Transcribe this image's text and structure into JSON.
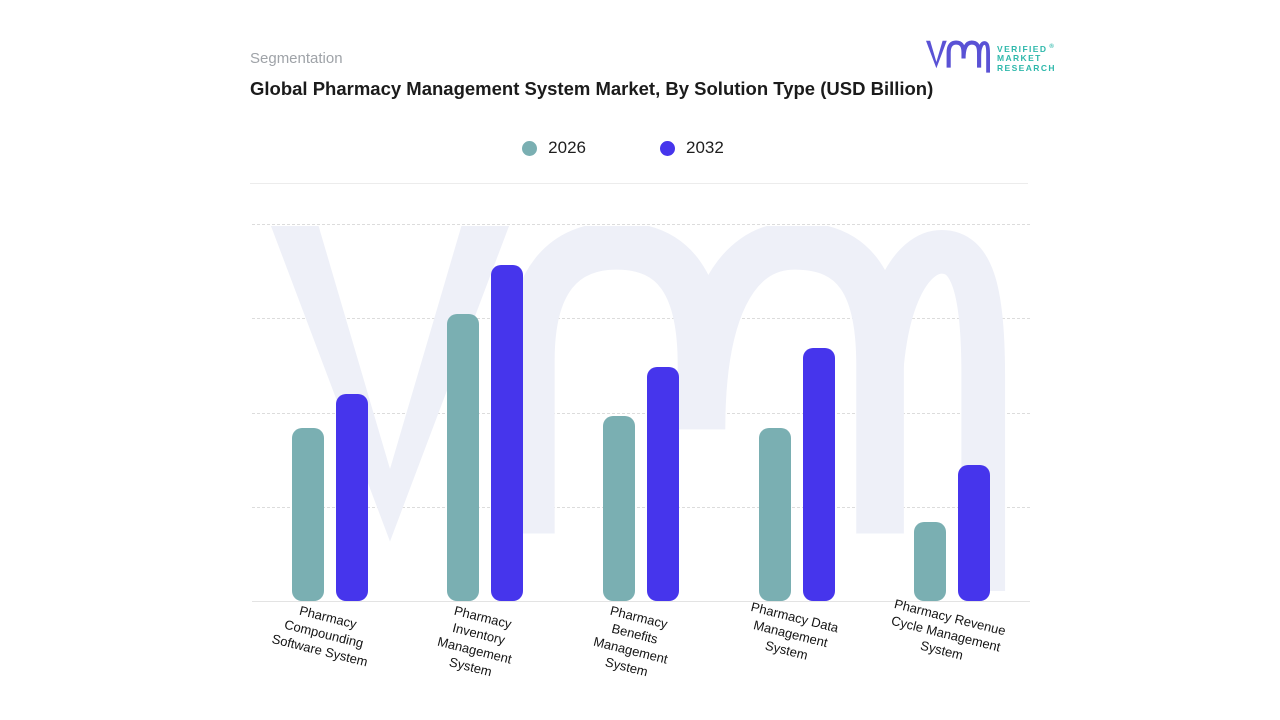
{
  "header": {
    "eyebrow": "Segmentation",
    "title": "Global Pharmacy Management System Market, By Solution Type (USD Billion)"
  },
  "logo": {
    "brand_lines": [
      "VERIFIED",
      "MARKET",
      "RESEARCH"
    ],
    "registered_mark": "®",
    "monogram_color": "#5a52d5",
    "text_color": "#2eb8ab"
  },
  "legend": [
    {
      "label": "2026",
      "color": "#7aafb2"
    },
    {
      "label": "2032",
      "color": "#4635ec"
    }
  ],
  "watermark": {
    "icon": "vmr-monogram",
    "color": "#eef0f8"
  },
  "chart_data": {
    "type": "bar",
    "title": "Global Pharmacy Management System Market, By Solution Type (USD Billion)",
    "unit": "USD Billion",
    "categories": [
      "Pharmacy\nCompounding\nSoftware System",
      "Pharmacy\nInventory\nManagement\nSystem",
      "Pharmacy\nBenefits\nManagement\nSystem",
      "Pharmacy Data\nManagement\nSystem",
      "Pharmacy Revenue\nCycle Management\nSystem"
    ],
    "series": [
      {
        "name": "2026",
        "color": "#7aafb2",
        "values": [
          46,
          76,
          49,
          46,
          21
        ]
      },
      {
        "name": "2032",
        "color": "#4635ec",
        "values": [
          55,
          89,
          62,
          67,
          36
        ]
      }
    ],
    "ylim": [
      0,
      100
    ],
    "y_axis_ticks": "none (values not labeled in source)",
    "grid": "horizontal-dashed",
    "legend_position": "top-center"
  }
}
